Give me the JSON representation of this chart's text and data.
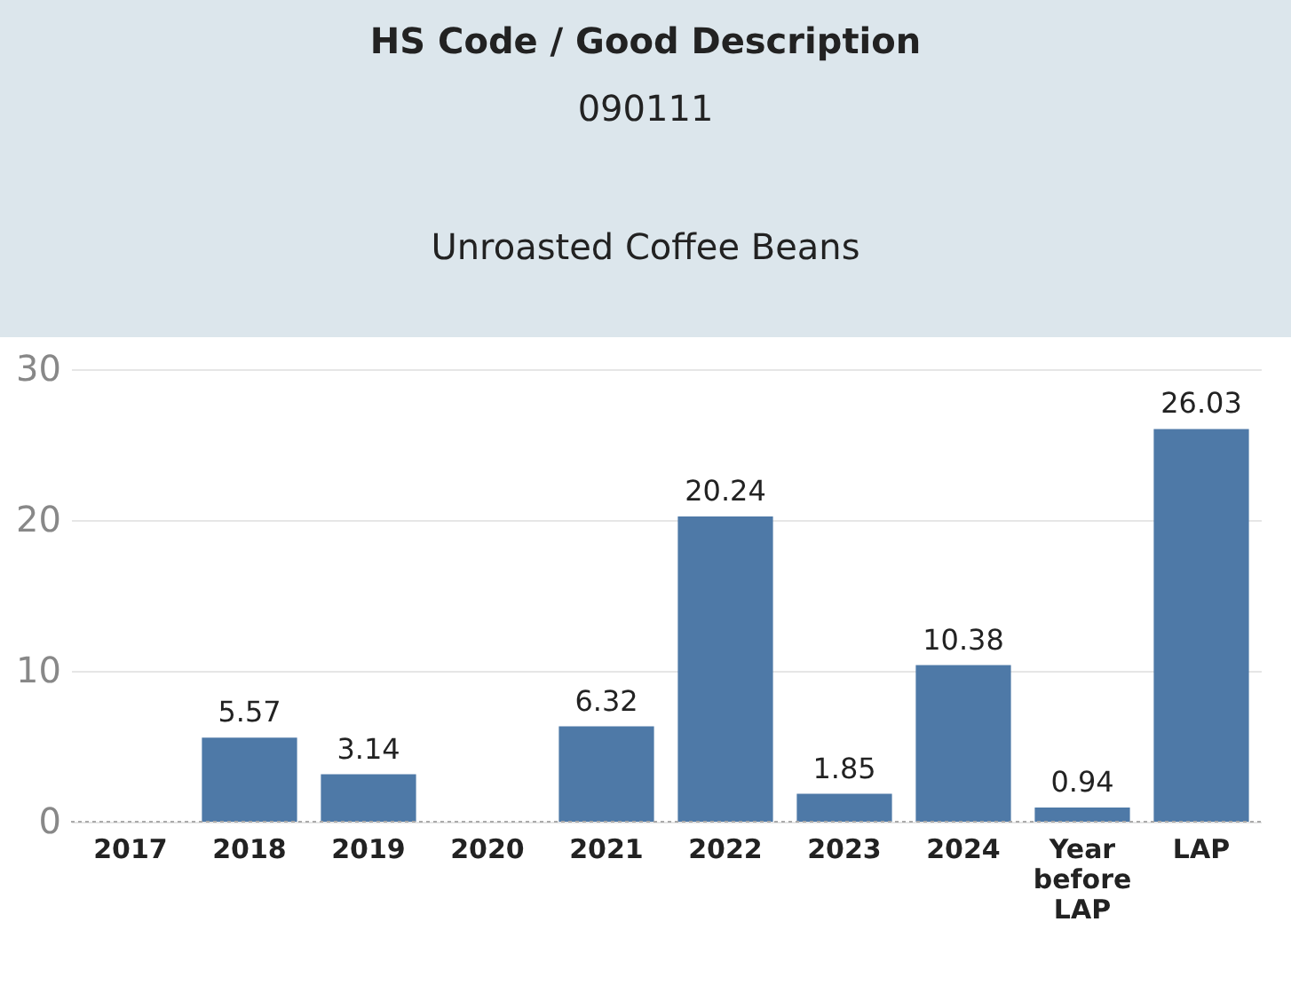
{
  "chart_data": {
    "type": "bar",
    "title": "HS Code / Good Description",
    "subtitle": "090111",
    "annotations": [
      "Unroasted Coffee Beans"
    ],
    "categories": [
      "2017",
      "2018",
      "2019",
      "2020",
      "2021",
      "2022",
      "2023",
      "2024",
      "Year before LAP",
      "LAP"
    ],
    "values": [
      null,
      5.57,
      3.14,
      null,
      6.32,
      20.24,
      1.85,
      10.38,
      0.94,
      26.03
    ],
    "color": "#4e79a7",
    "ylim": [
      0,
      30
    ],
    "yticks": [
      0,
      10,
      20,
      30
    ],
    "grid": "y",
    "data_labels": true
  }
}
